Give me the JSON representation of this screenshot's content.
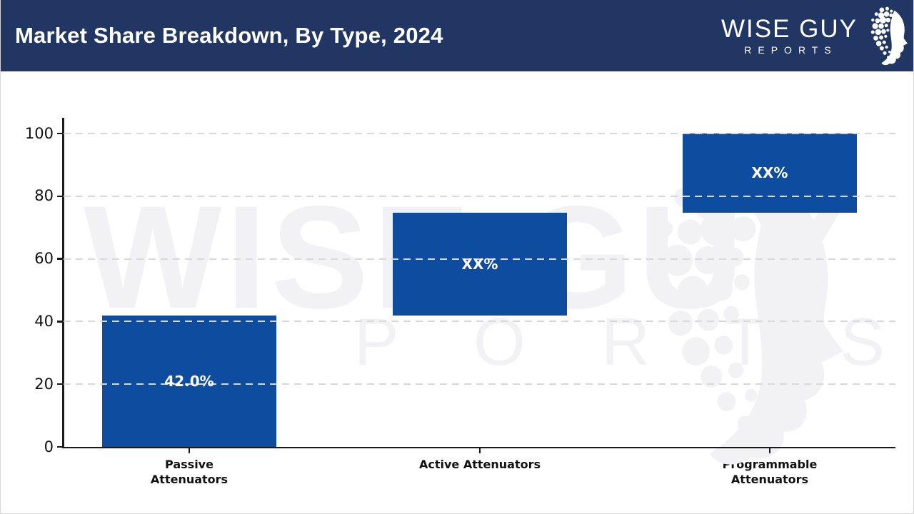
{
  "header": {
    "title": "Market Share Breakdown, By Type, 2024",
    "logo": {
      "line1": "WISE GUY",
      "line2": "REPORTS"
    }
  },
  "watermark": {
    "line1": "WISE GUY",
    "line2": "R E P O R T S"
  },
  "colors": {
    "header_bg": "#213663",
    "title_text": "#ffffff",
    "bar": "#0d4c9f",
    "bar_label": "#ffffff",
    "gridline": "#d8d8d8",
    "axis": "#1a1a1a",
    "watermark": "#f2f2f4"
  },
  "chart_data": {
    "type": "bar",
    "subtype": "stacked-waterfall",
    "title": "Market Share Breakdown, By Type, 2024",
    "categories": [
      "Passive\nAttenuators",
      "Active Attenuators",
      "Programmable\nAttenuators"
    ],
    "segments": [
      {
        "category": "Passive Attenuators",
        "label": "42.0%",
        "start": 0,
        "end": 42.0,
        "value": 42.0
      },
      {
        "category": "Active Attenuators",
        "label": "XX%",
        "start": 42.0,
        "end": 74.8,
        "value": 32.8
      },
      {
        "category": "Programmable Attenuators",
        "label": "XX%",
        "start": 74.8,
        "end": 100.0,
        "value": 25.2
      }
    ],
    "xlabel": "",
    "ylabel": "",
    "yticks": [
      0,
      20,
      40,
      60,
      80,
      100
    ],
    "ylim": [
      0,
      105
    ],
    "grid": "horizontal-dashed",
    "legend": "none"
  }
}
